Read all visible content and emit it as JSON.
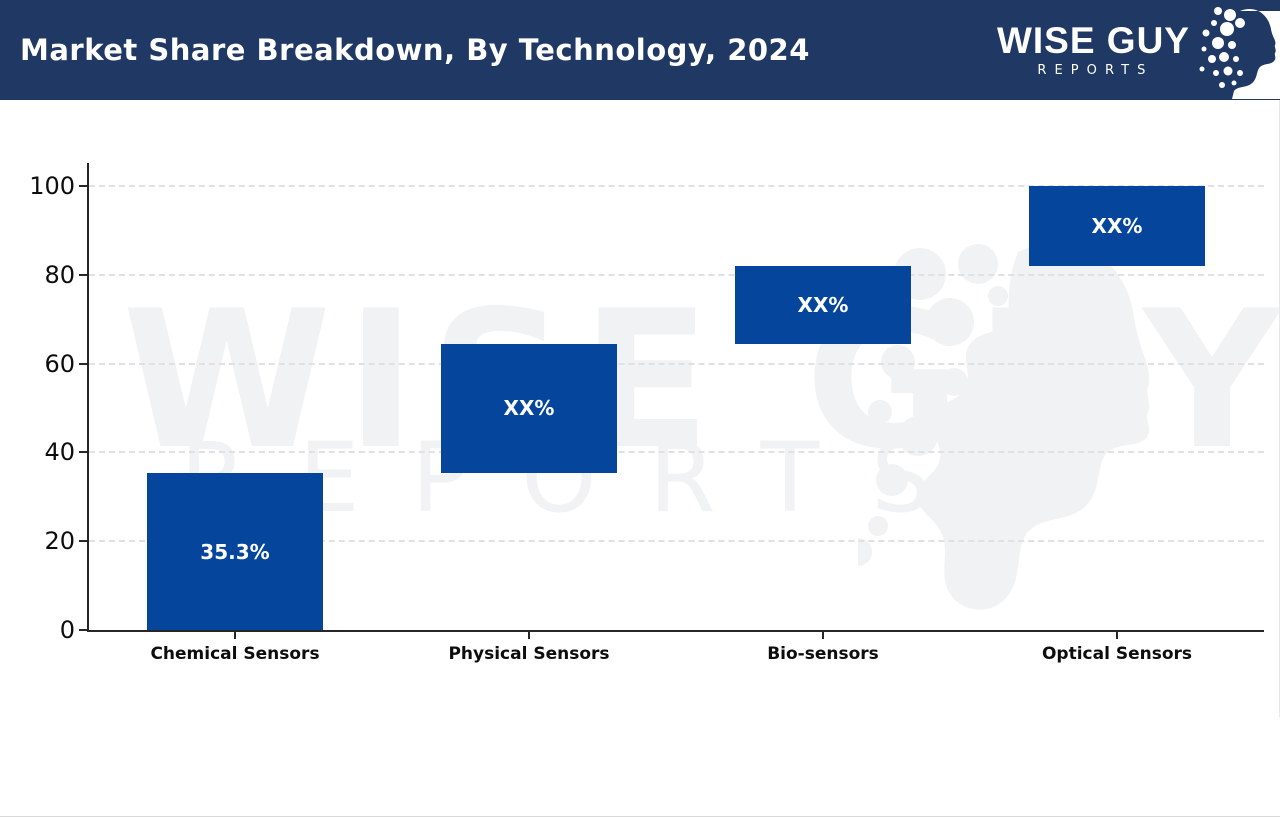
{
  "header": {
    "title": "Market Share Breakdown, By Technology, 2024",
    "bg_color": "#1f3864",
    "logo": {
      "line1": "WISE GUY",
      "line2": "REPORTS"
    }
  },
  "watermark": {
    "line1": "WISE GUY",
    "line2": "REPORTS"
  },
  "chart_data": {
    "type": "bar",
    "subtype": "waterfall",
    "title": "Market Share Breakdown, By Technology, 2024",
    "categories": [
      "Chemical Sensors",
      "Physical Sensors",
      "Bio-sensors",
      "Optical Sensors"
    ],
    "series": [
      {
        "name": "Market Share (%)",
        "segments": [
          {
            "category": "Chemical Sensors",
            "start": 0,
            "end": 35.3,
            "label": "35.3%"
          },
          {
            "category": "Physical Sensors",
            "start": 35.3,
            "end": 64.5,
            "label": "XX%"
          },
          {
            "category": "Bio-sensors",
            "start": 64.5,
            "end": 82.0,
            "label": "XX%"
          },
          {
            "category": "Optical Sensors",
            "start": 82.0,
            "end": 100.0,
            "label": "XX%"
          }
        ]
      }
    ],
    "bar_labels": [
      "35.3%",
      "XX%",
      "XX%",
      "XX%"
    ],
    "bar_color": "#05459b",
    "xlabel": "",
    "ylabel": "",
    "ylim": [
      0,
      100
    ],
    "yticks": [
      0,
      20,
      40,
      60,
      80,
      100
    ],
    "grid": "horizontal-dashed",
    "legend": "none"
  }
}
